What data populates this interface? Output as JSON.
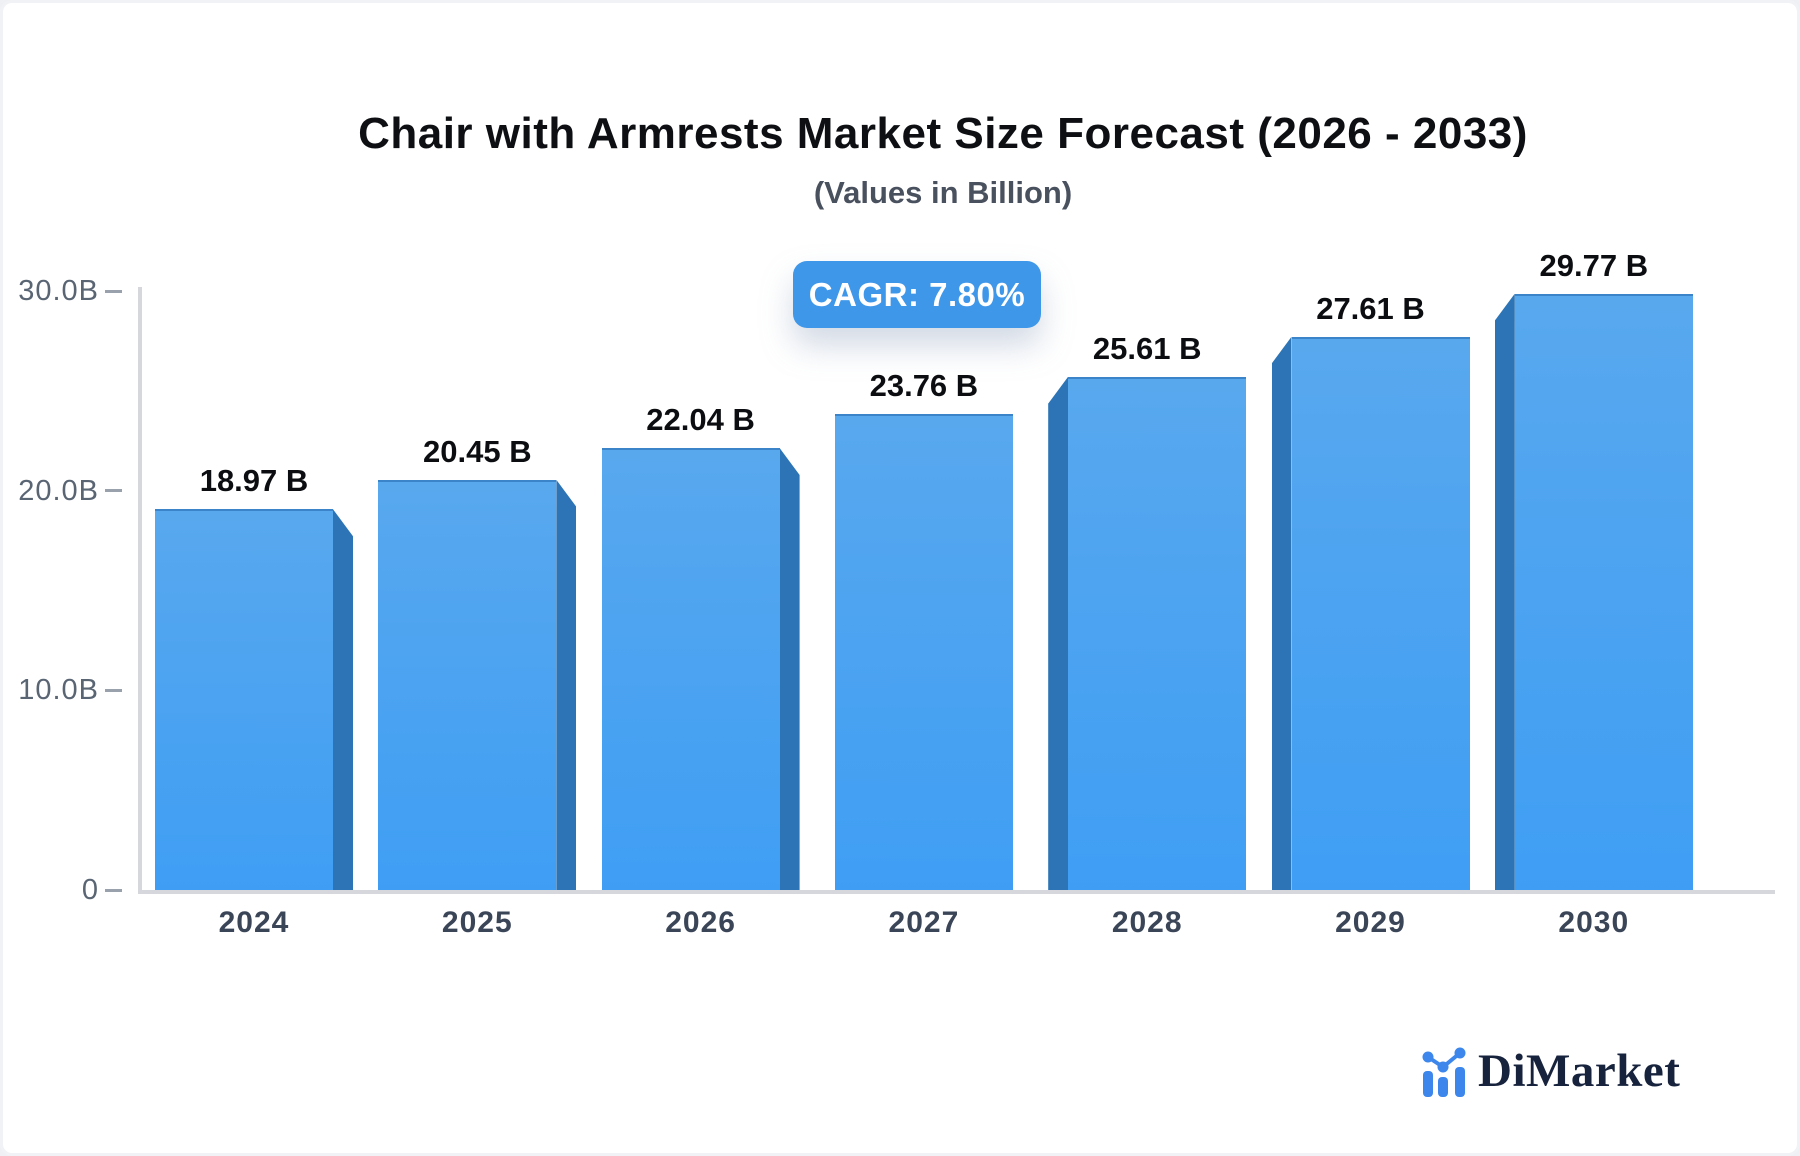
{
  "header": {
    "title": "Chair with Armrests Market Size Forecast (2026 - 2033)",
    "subtitle": "(Values in Billion)"
  },
  "badge": {
    "label": "CAGR: 7.80%",
    "color": "#3f97ea"
  },
  "chart_data": {
    "type": "bar",
    "title": "Chair with Armrests Market Size Forecast (2026 - 2033)",
    "subtitle": "(Values in Billion)",
    "cagr_label": "CAGR: 7.80%",
    "categories": [
      "2024",
      "2025",
      "2026",
      "2027",
      "2028",
      "2029",
      "2030"
    ],
    "values": [
      18.97,
      20.45,
      22.04,
      23.76,
      25.61,
      27.61,
      29.77
    ],
    "value_labels": [
      "18.97 B",
      "20.45 B",
      "22.04 B",
      "23.76 B",
      "25.61 B",
      "27.61 B",
      "29.77 B"
    ],
    "xlabel": "",
    "ylabel": "",
    "ylim": [
      0,
      30
    ],
    "y_ticks": [
      {
        "value": 30,
        "label": "30.0B"
      },
      {
        "value": 20,
        "label": "20.0B"
      },
      {
        "value": 10,
        "label": "10.0B"
      },
      {
        "value": 0,
        "label": "0"
      }
    ],
    "grid": false,
    "legend": "none",
    "style": "3d-bars, side bevel faces toward chart center"
  },
  "colors": {
    "accent": "#3f97ea",
    "bar_top": "#58a8ee",
    "bar_bottom": "#3f9ef4",
    "bar_side": "#2c74b5",
    "axis_line": "#d5d7dc",
    "tick_dash": "#98a1ac",
    "tick_text": "#5a6574",
    "title_text": "#0d0f13",
    "subtitle_text": "#49505e",
    "value_text": "#0b0d10",
    "brand_text": "#17233d",
    "logo_blue": "#3d87ec"
  },
  "footer": {
    "brand": "DiMarket",
    "logo_icon": "bar-chart-logo-icon"
  }
}
